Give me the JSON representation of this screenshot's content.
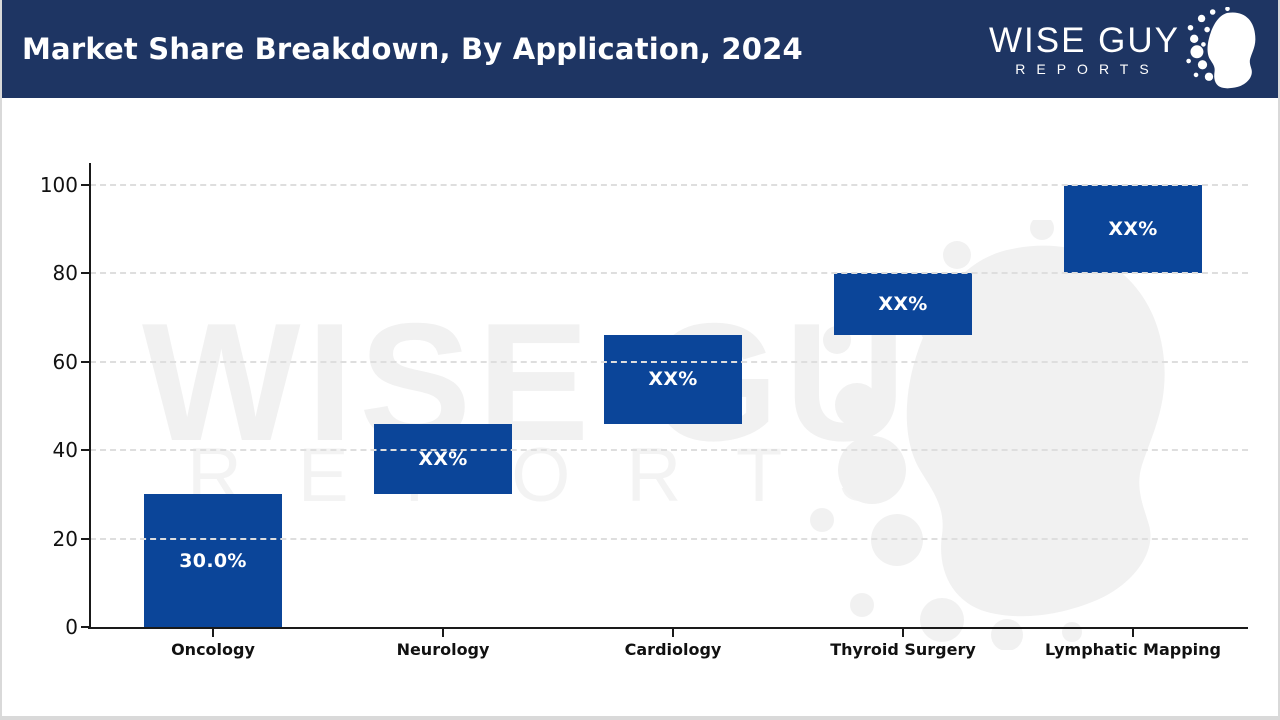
{
  "header": {
    "title": "Market Share Breakdown, By Application, 2024",
    "bg_color": "#1e3563",
    "logo": {
      "line1": "WISE GUY",
      "line2": "REPORTS"
    }
  },
  "watermark": {
    "line1": "WISE GUY",
    "line2": "REPORTS"
  },
  "chart_data": {
    "type": "bar",
    "subtype": "waterfall",
    "title": "Market Share Breakdown, By Application, 2024",
    "xlabel": "",
    "ylabel": "",
    "ylim": [
      0,
      100
    ],
    "yticks": [
      0,
      20,
      40,
      60,
      80,
      100
    ],
    "grid": "horizontal-dashed",
    "legend": "none",
    "bar_color": "#0b4599",
    "bar_label_color": "#ffffff",
    "categories": [
      "Oncology",
      "Neurology",
      "Cardiology",
      "Thyroid Surgery",
      "Lymphatic Mapping"
    ],
    "bars": [
      {
        "category": "Oncology",
        "start": 0,
        "end": 30,
        "value": 30,
        "label": "30.0%"
      },
      {
        "category": "Neurology",
        "start": 30,
        "end": 46,
        "value": 16,
        "label": "XX%"
      },
      {
        "category": "Cardiology",
        "start": 46,
        "end": 66,
        "value": 20,
        "label": "XX%"
      },
      {
        "category": "Thyroid Surgery",
        "start": 66,
        "end": 80,
        "value": 14,
        "label": "XX%"
      },
      {
        "category": "Lymphatic Mapping",
        "start": 80,
        "end": 100,
        "value": 20,
        "label": "XX%"
      }
    ]
  }
}
